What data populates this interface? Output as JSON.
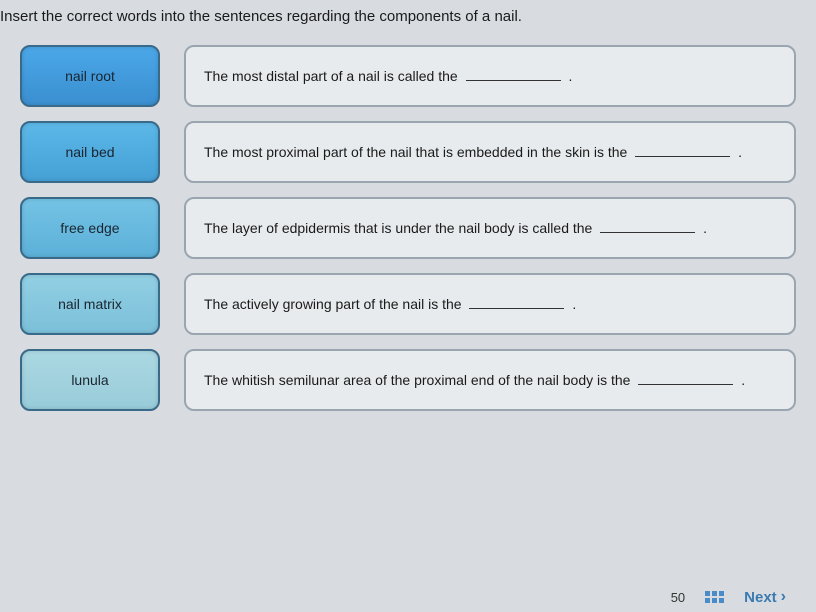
{
  "instruction": "Insert the correct words into the sentences regarding the components of a nail.",
  "terms": [
    {
      "label": "nail root"
    },
    {
      "label": "nail bed"
    },
    {
      "label": "free edge"
    },
    {
      "label": "nail matrix"
    },
    {
      "label": "lunula"
    }
  ],
  "sentences": [
    {
      "pre": "The most distal part of a nail is called the ",
      "post": " ."
    },
    {
      "pre": "The most proximal part of the nail that is embedded in the skin is the ",
      "post": " ."
    },
    {
      "pre": "The layer of edpidermis that is under the nail body is called the ",
      "post": " ."
    },
    {
      "pre": "The actively growing part of the nail is the ",
      "post": " ."
    },
    {
      "pre": "The whitish semilunar area of the proximal end of the nail body is the ",
      "post": " ."
    }
  ],
  "footer": {
    "counter": "50",
    "next_label": "Next"
  },
  "colors": {
    "background": "#d8dce0",
    "term_border": "#3a6a8a",
    "sentence_bg": "#e8ebee",
    "sentence_border": "#9aa5b0",
    "text": "#1a1a1a",
    "accent": "#4a8cc7"
  }
}
